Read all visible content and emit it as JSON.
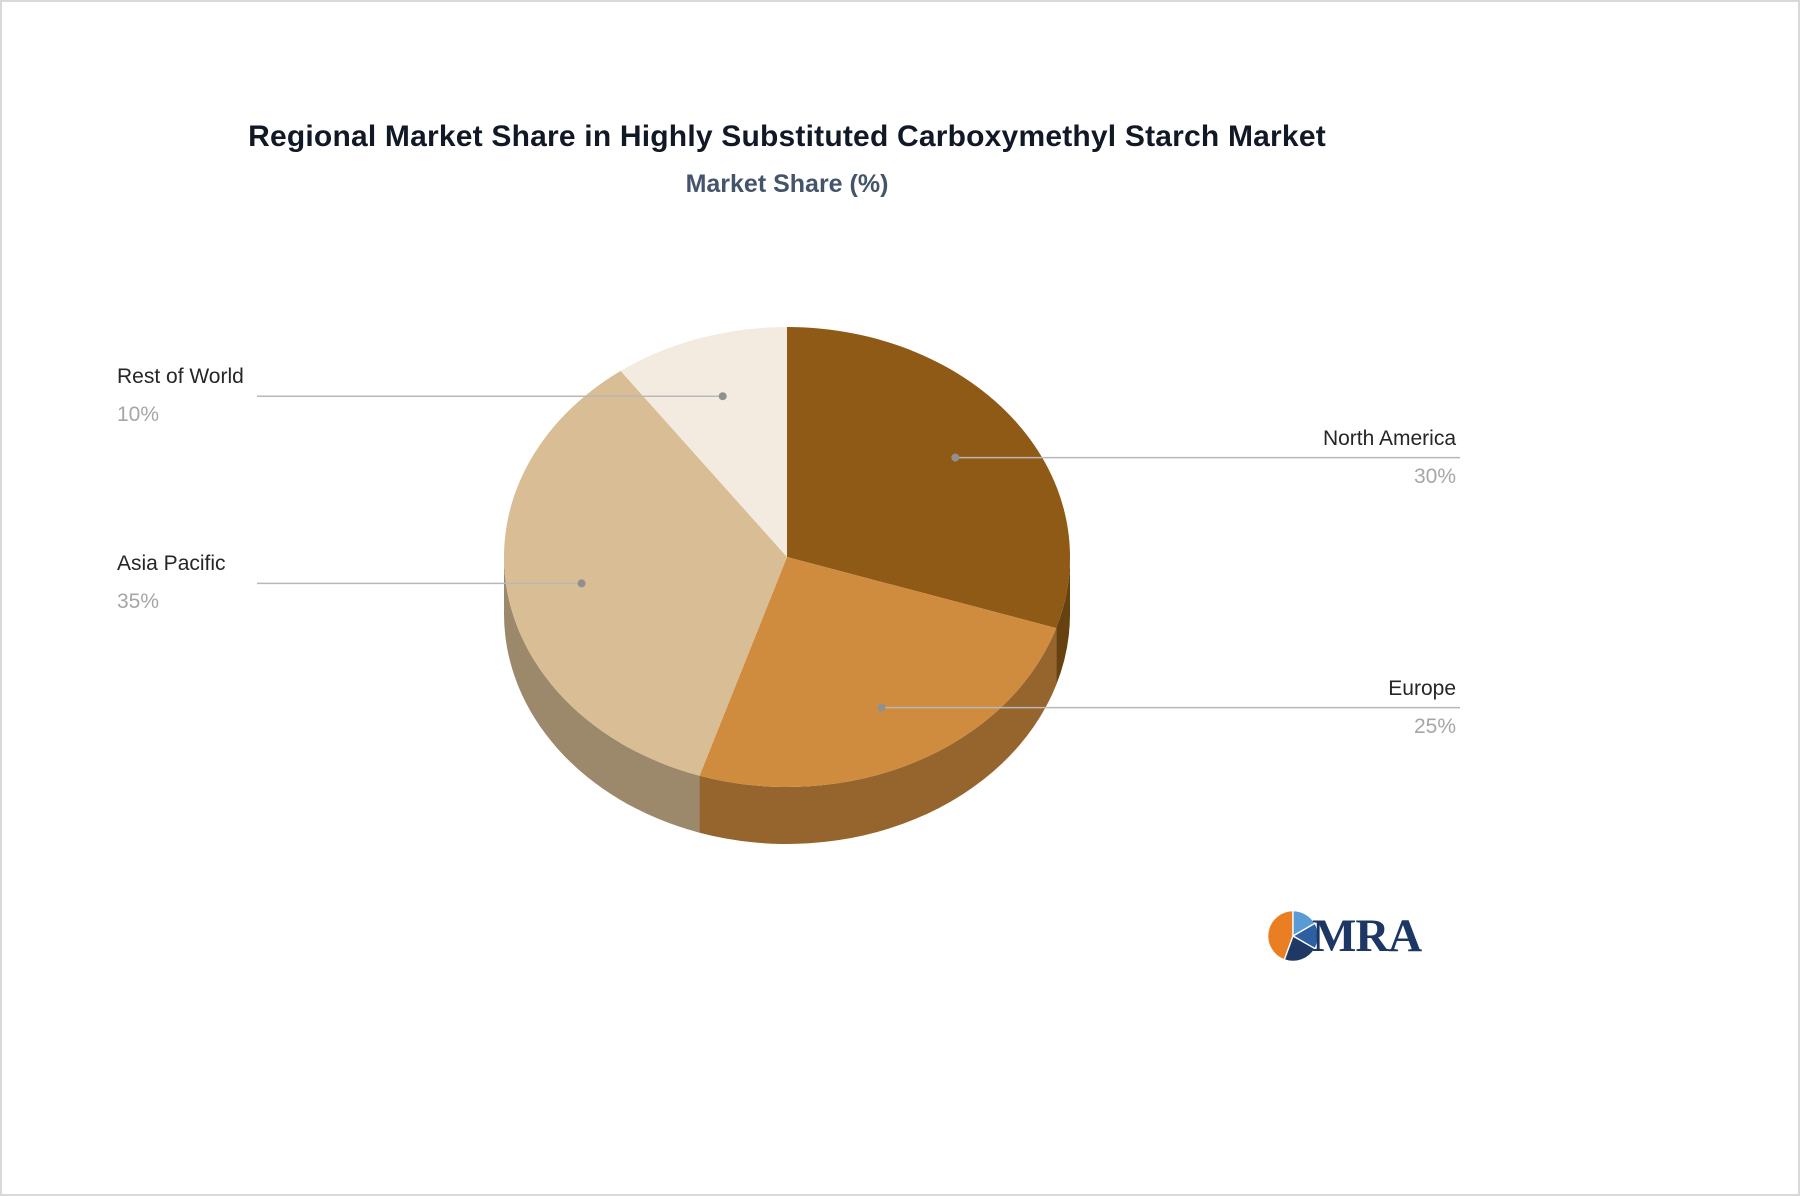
{
  "chart_data": {
    "type": "pie",
    "title": "Regional Market Share in Highly Substituted Carboxymethyl Starch Market",
    "subtitle": "Market Share (%)",
    "unit": "%",
    "start_angle_deg": -90,
    "direction": "clockwise",
    "style": "3d",
    "legend_position": "none",
    "slices": [
      {
        "label": "North America",
        "value": 30,
        "display": "30%",
        "color": "#8f5a16",
        "label_side": "right"
      },
      {
        "label": "Europe",
        "value": 25,
        "display": "25%",
        "color": "#d08c3e",
        "label_side": "right"
      },
      {
        "label": "Asia Pacific",
        "value": 35,
        "display": "35%",
        "color": "#d8bd95",
        "label_side": "left"
      },
      {
        "label": "Rest of World",
        "value": 10,
        "display": "10%",
        "color": "#f3ebdf",
        "label_side": "left"
      }
    ]
  },
  "logo": {
    "text": "MRA",
    "text_color": "#1d3765",
    "icon_colors": [
      "#e97e23",
      "#5b9bd5",
      "#2e5fa3",
      "#1f3864"
    ]
  }
}
